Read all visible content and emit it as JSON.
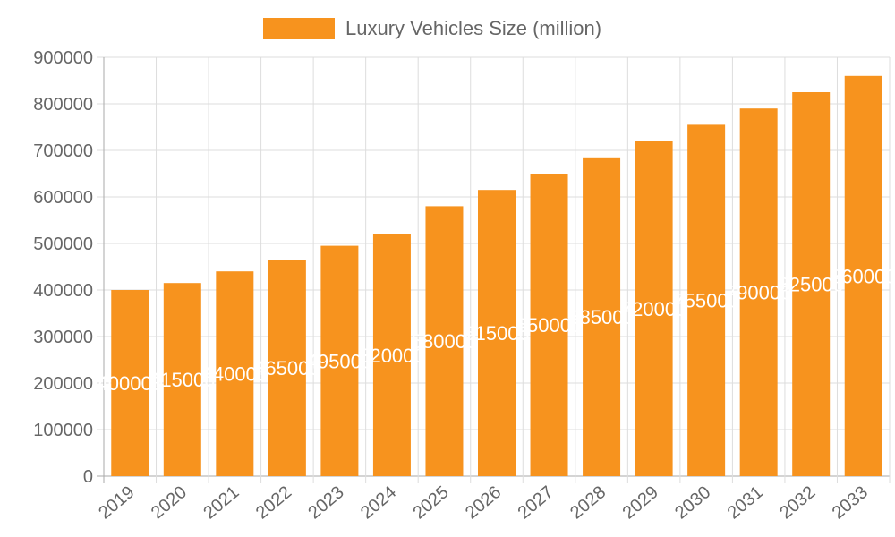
{
  "chart_data": {
    "type": "bar",
    "categories": [
      "2019",
      "2020",
      "2021",
      "2022",
      "2023",
      "2024",
      "2025",
      "2026",
      "2027",
      "2028",
      "2029",
      "2030",
      "2031",
      "2032",
      "2033"
    ],
    "series": [
      {
        "name": "Luxury Vehicles Size (million)",
        "values": [
          400000,
          415000,
          440000,
          465000,
          495000,
          520000,
          580000,
          615000,
          650000,
          685000,
          720000,
          755000,
          790000,
          825000,
          860000
        ],
        "color": "#f7931e"
      }
    ],
    "ylim": [
      0,
      900000
    ],
    "yticks": [
      0,
      100000,
      200000,
      300000,
      400000,
      500000,
      600000,
      700000,
      800000,
      900000
    ],
    "grid": true,
    "legend": "top",
    "data_labels": true,
    "xlabel": "",
    "ylabel": ""
  }
}
